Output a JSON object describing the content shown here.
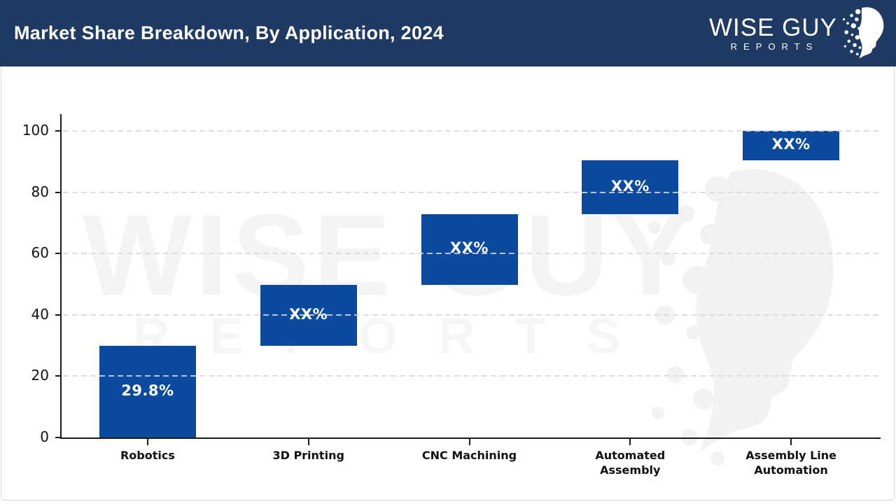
{
  "header": {
    "title": "Market Share Breakdown, By Application, 2024",
    "logo": {
      "line1": "WISE GUY",
      "line2": "REPORTS"
    }
  },
  "watermark": {
    "line1": "WISE GUY",
    "line2": "REPORTS"
  },
  "colors": {
    "header_bg": "#1f3a63",
    "background": "#ffffff",
    "watermark": "#f4f4f4"
  },
  "chart_data": {
    "type": "bar",
    "subtype": "waterfall",
    "title": "Market Share Breakdown, By Application, 2024",
    "categories": [
      "Robotics",
      "3D Printing",
      "CNC Machining",
      "Automated Assembly",
      "Assembly Line Automation"
    ],
    "bars": [
      {
        "category": "Robotics",
        "base": 0,
        "top": 29.8,
        "label": "29.8%"
      },
      {
        "category": "3D Printing",
        "base": 29.8,
        "top": 49.8,
        "label": "XX%"
      },
      {
        "category": "CNC Machining",
        "base": 49.8,
        "top": 72.9,
        "label": "XX%"
      },
      {
        "category": "Automated Assembly",
        "base": 72.9,
        "top": 90.3,
        "label": "XX%"
      },
      {
        "category": "Assembly Line Automation",
        "base": 90.3,
        "top": 100,
        "label": "XX%"
      }
    ],
    "xlabel": "",
    "ylabel": "",
    "ylim": [
      0,
      100
    ],
    "yticks": [
      0,
      20,
      40,
      60,
      80,
      100
    ],
    "legend": "none",
    "grid": "horizontal-dashed",
    "bar_color": "#0b4a9f",
    "bar_label_color": "#ffffff",
    "grid_color": "#d9d9d9",
    "axis_color": "#1a1a1a",
    "tick_label_color": "#111111"
  }
}
